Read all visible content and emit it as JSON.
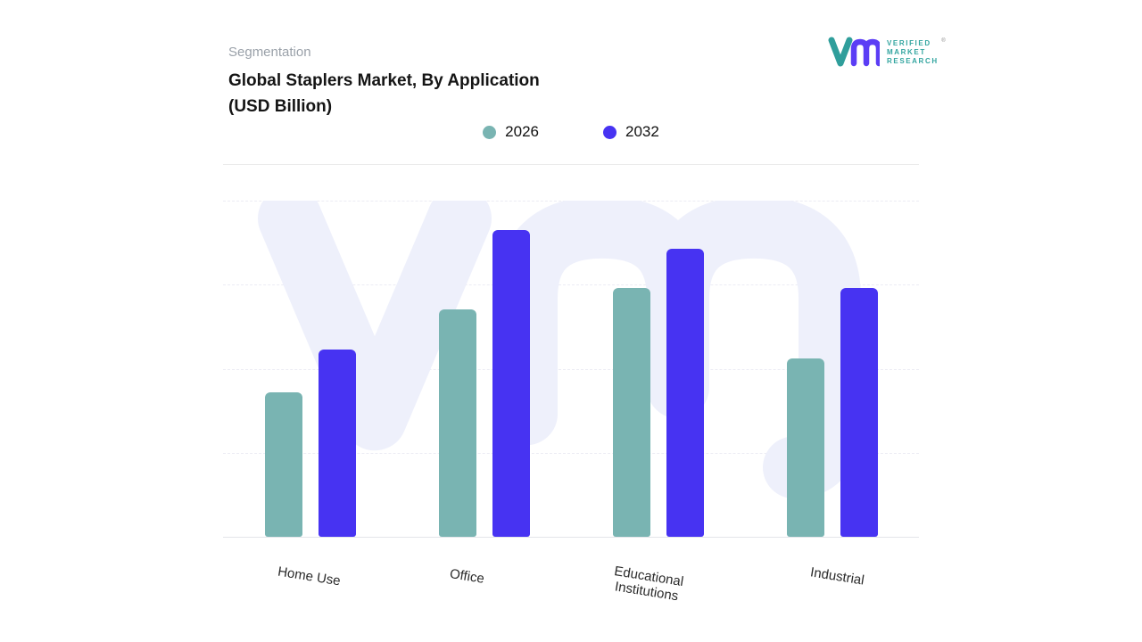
{
  "header": {
    "eyebrow": "Segmentation",
    "title_line1": "Global Staplers Market, By Application",
    "title_line2": "(USD Billion)"
  },
  "legend": [
    {
      "label": "2026",
      "color": "#79b4b2"
    },
    {
      "label": "2032",
      "color": "#4733f2"
    }
  ],
  "brand": {
    "lines": [
      "VERIFIED",
      "MARKET",
      "RESEARCH"
    ],
    "registered": "®",
    "teal": "#33a5a0",
    "purple": "#5b3df5"
  },
  "chart_data": {
    "type": "bar",
    "title": "Global Staplers Market, By Application (USD Billion)",
    "categories": [
      "Home Use",
      "Office",
      "Educational Institutions",
      "Industrial"
    ],
    "series": [
      {
        "name": "2026",
        "color": "#79b4b2",
        "values": [
          47,
          74,
          81,
          58
        ]
      },
      {
        "name": "2032",
        "color": "#4733f2",
        "values": [
          61,
          100,
          94,
          81
        ]
      }
    ],
    "xlabel": "",
    "ylabel": "",
    "value_note": "relative heights, no y-axis tick labels shown in image; tallest bar (Office 2032) = 100",
    "ylim": [
      0,
      110
    ],
    "grid": "dashed horizontal gridlines, no visible y-axis labels",
    "legend_position": "top-center",
    "watermark_color": "#eef0fb"
  }
}
